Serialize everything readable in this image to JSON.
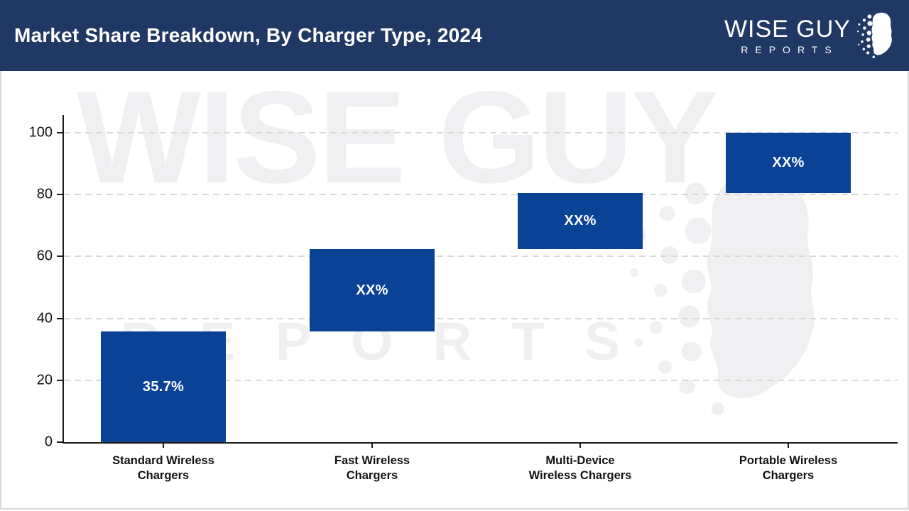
{
  "header": {
    "title": "Market Share Breakdown, By Charger Type, 2024",
    "brand": {
      "line1": "WISE GUY",
      "line2": "REPORTS"
    }
  },
  "watermark": {
    "line1": "WISE GUY",
    "line2": "REPORTS"
  },
  "chart_data": {
    "type": "bar",
    "subtype": "waterfall",
    "title": "Market Share Breakdown, By Charger Type, 2024",
    "categories": [
      {
        "lines": [
          "Standard Wireless",
          "Chargers"
        ]
      },
      {
        "lines": [
          "Fast Wireless",
          "Chargers"
        ]
      },
      {
        "lines": [
          "Multi-Device",
          "Wireless Chargers"
        ]
      },
      {
        "lines": [
          "Portable Wireless",
          "Chargers"
        ]
      }
    ],
    "bars": [
      {
        "label": "35.7%",
        "start": 0,
        "end": 35.7
      },
      {
        "label": "XX%",
        "start": 35.7,
        "end": 62.4
      },
      {
        "label": "XX%",
        "start": 62.4,
        "end": 80.5
      },
      {
        "label": "XX%",
        "start": 80.5,
        "end": 100
      }
    ],
    "xlabel": "",
    "ylabel": "",
    "ylim": [
      0,
      100
    ],
    "yticks": [
      0,
      20,
      40,
      60,
      80,
      100
    ],
    "grid": "horizontal-dashed",
    "legend": false,
    "colors": {
      "bar": "#0A4296",
      "header": "#203864",
      "grid": "#d9d9d9",
      "watermark": "#f0f0f3",
      "axis": "#1a1a1a",
      "value_label": "#ffffff"
    }
  }
}
